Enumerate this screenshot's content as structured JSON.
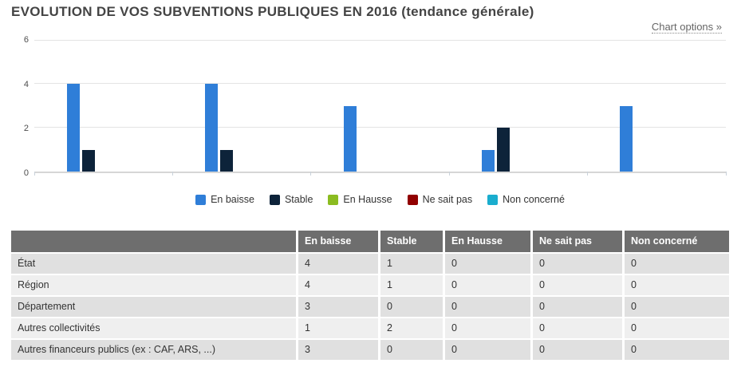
{
  "page": {
    "title": "EVOLUTION DE VOS SUBVENTIONS PUBLIQUES EN 2016 (tendance générale)",
    "chart_options_label": "Chart options »"
  },
  "colors": {
    "en_baisse": "#2f7ed8",
    "stable": "#0d233a",
    "en_hausse": "#8bbc21",
    "ne_sait_pas": "#910000",
    "non_concerne": "#1aadce",
    "table_header_bg": "#6e6e6e",
    "table_row_odd_bg": "#e0e0e0",
    "table_row_even_bg": "#efefef"
  },
  "chart_data": {
    "type": "bar",
    "title": "EVOLUTION DE VOS SUBVENTIONS PUBLIQUES EN 2016 (tendance générale)",
    "categories": [
      "État",
      "Région",
      "Département",
      "Autres collectivités",
      "Autres financeurs publics (ex : CAF, ARS, ...)"
    ],
    "series": [
      {
        "name": "En baisse",
        "slug": "en-baisse",
        "color": "#2f7ed8",
        "values": [
          4,
          4,
          3,
          1,
          3
        ]
      },
      {
        "name": "Stable",
        "slug": "stable",
        "color": "#0d233a",
        "values": [
          1,
          1,
          0,
          2,
          0
        ]
      },
      {
        "name": "En Hausse",
        "slug": "en-hausse",
        "color": "#8bbc21",
        "values": [
          0,
          0,
          0,
          0,
          0
        ]
      },
      {
        "name": "Ne sait pas",
        "slug": "ne-sait-pas",
        "color": "#910000",
        "values": [
          0,
          0,
          0,
          0,
          0
        ]
      },
      {
        "name": "Non concerné",
        "slug": "non-concerne",
        "color": "#1aadce",
        "values": [
          0,
          0,
          0,
          0,
          0
        ]
      }
    ],
    "xlabel": "",
    "ylabel": "",
    "ylim": [
      0,
      6
    ],
    "yticks": [
      0,
      2,
      4,
      6
    ],
    "x_tick_labels_visible": false,
    "grid": true,
    "legend_position": "bottom"
  },
  "table": {
    "columns": [
      "",
      "En baisse",
      "Stable",
      "En Hausse",
      "Ne sait pas",
      "Non concerné"
    ],
    "rows": [
      {
        "label": "État",
        "values": [
          "4",
          "1",
          "0",
          "0",
          "0"
        ]
      },
      {
        "label": "Région",
        "values": [
          "4",
          "1",
          "0",
          "0",
          "0"
        ]
      },
      {
        "label": "Département",
        "values": [
          "3",
          "0",
          "0",
          "0",
          "0"
        ]
      },
      {
        "label": "Autres collectivités",
        "values": [
          "1",
          "2",
          "0",
          "0",
          "0"
        ]
      },
      {
        "label": "Autres financeurs publics (ex : CAF, ARS, ...)",
        "values": [
          "3",
          "0",
          "0",
          "0",
          "0"
        ]
      }
    ]
  }
}
